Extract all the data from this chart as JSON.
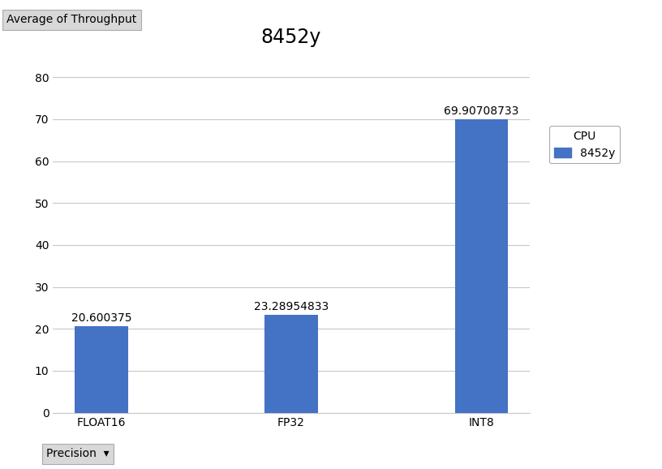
{
  "categories": [
    "FLOAT16",
    "FP32",
    "INT8"
  ],
  "values": [
    20.600375,
    23.28954833,
    69.90708733
  ],
  "bar_color": "#4472C4",
  "title": "8452y",
  "title_fontsize": 17,
  "ylabel_text": "Average of Throughput",
  "ylim": [
    0,
    85
  ],
  "yticks": [
    0,
    10,
    20,
    30,
    40,
    50,
    60,
    70,
    80
  ],
  "bar_labels": [
    "20.600375",
    "23.28954833",
    "69.90708733"
  ],
  "legend_title": "CPU",
  "legend_label": "8452y",
  "xlabel_button": "Precision",
  "background_color": "#FFFFFF",
  "plot_bg_color": "#FFFFFF",
  "grid_color": "#C8C8C8",
  "label_fontsize": 10,
  "tick_fontsize": 10,
  "bar_width": 0.28
}
